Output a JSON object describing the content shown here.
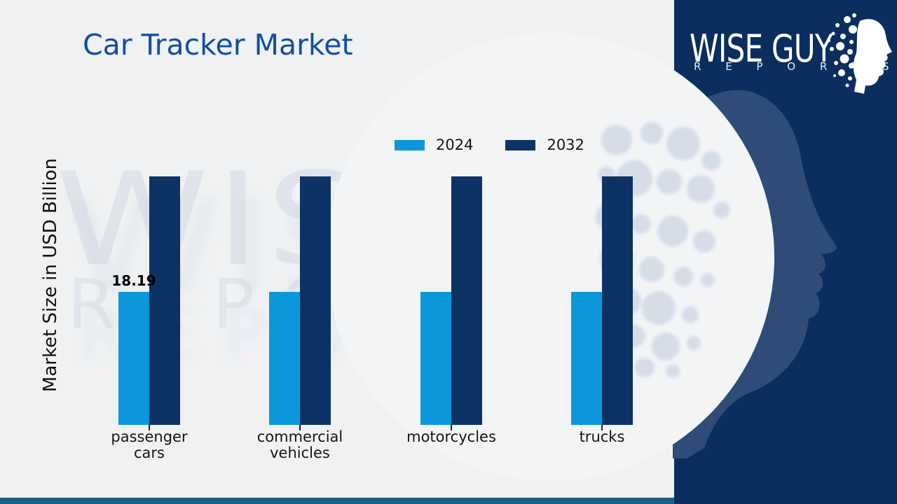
{
  "brand": {
    "logo_line1": "WISE GUY",
    "logo_line2": "R E P O R T S",
    "panel_color": "#0b2e5e",
    "accent_strip_color": "#1d5f7f"
  },
  "watermark": {
    "line1": "WISEGUY",
    "line2": "REPORTS"
  },
  "chart_data": {
    "type": "bar",
    "title": "Car Tracker Market",
    "title_color": "#114f9f",
    "xlabel": "",
    "ylabel": "Market Size in USD Billion",
    "categories": [
      "passenger cars",
      "commercial vehicles",
      "motorcycles",
      "trucks"
    ],
    "series": [
      {
        "name": "2024",
        "color": "#0d97db",
        "values": [
          18.19,
          18.19,
          18.19,
          18.19
        ]
      },
      {
        "name": "2032",
        "color": "#0d3366",
        "values": [
          34,
          34,
          34,
          34
        ]
      }
    ],
    "annotations": [
      {
        "text": "18.19",
        "category": "passenger cars",
        "series": "2024"
      }
    ],
    "ylim": [
      0,
      38
    ],
    "grid": false,
    "legend_position": "top-center",
    "value_axis_ticks_visible": false
  }
}
